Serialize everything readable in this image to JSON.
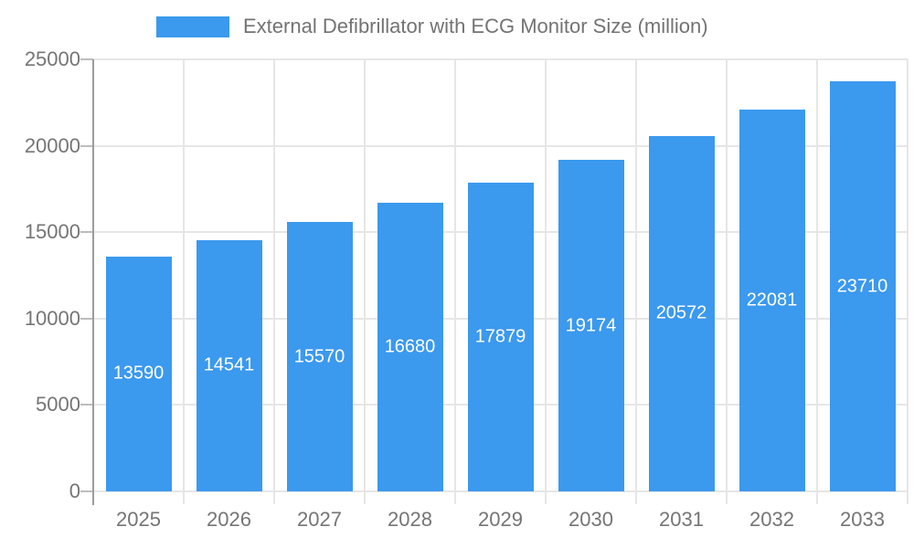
{
  "legend": {
    "label": "External Defibrillator with ECG Monitor Size (million)"
  },
  "chart_data": {
    "type": "bar",
    "title": "External Defibrillator with ECG Monitor Size (million)",
    "categories": [
      "2025",
      "2026",
      "2027",
      "2028",
      "2029",
      "2030",
      "2031",
      "2032",
      "2033"
    ],
    "values": [
      13590,
      14541,
      15570,
      16680,
      17879,
      19174,
      20572,
      22081,
      23710
    ],
    "xlabel": "",
    "ylabel": "",
    "ylim": [
      0,
      25000
    ],
    "ytick_step": 5000,
    "ytick_labels": [
      "0",
      "5000",
      "10000",
      "15000",
      "20000",
      "25000"
    ],
    "grid": true,
    "legend_position": "top",
    "value_labels_position": "inside-center"
  },
  "style": {
    "bar_color": "#3b99ee",
    "bar_label_color": "#ffffff",
    "grid_color": "#e6e6e6",
    "axis_line_color": "#9c9c9c",
    "tick_color": "#bdbdbd",
    "axis_text_color": "#757575",
    "legend_text_color": "#737373",
    "background_color": "#ffffff"
  }
}
